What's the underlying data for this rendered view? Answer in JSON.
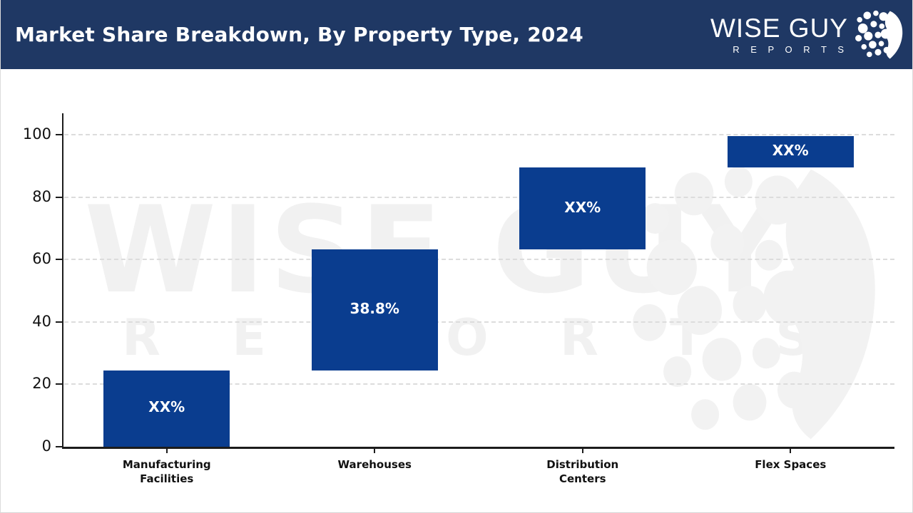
{
  "header": {
    "title": "Market Share Breakdown, By Property Type, 2024",
    "bg_color": "#1f3864",
    "logo": {
      "line1": "WISE GUY",
      "line2": "R E P O R T S"
    }
  },
  "watermark": {
    "line1": "WISE GUY",
    "line2": "R E P O R T S"
  },
  "chart_data": {
    "type": "bar",
    "variant": "waterfall",
    "title": "Market Share Breakdown, By Property Type, 2024",
    "xlabel": "",
    "ylabel": "",
    "categories": [
      {
        "name": "Manufacturing Facilities",
        "display": "Manufacturing\nFacilities"
      },
      {
        "name": "Warehouses",
        "display": "Warehouses"
      },
      {
        "name": "Distribution Centers",
        "display": "Distribution\nCenters"
      },
      {
        "name": "Flex Spaces",
        "display": "Flex Spaces"
      }
    ],
    "segments": [
      {
        "category": "Manufacturing Facilities",
        "start": 0,
        "end": 24.5,
        "label": "XX%"
      },
      {
        "category": "Warehouses",
        "start": 24.5,
        "end": 63.3,
        "label": "38.8%"
      },
      {
        "category": "Distribution Centers",
        "start": 63.3,
        "end": 89.5,
        "label": "XX%"
      },
      {
        "category": "Flex Spaces",
        "start": 89.5,
        "end": 99.7,
        "label": "XX%"
      }
    ],
    "yticks": [
      0,
      20,
      40,
      60,
      80,
      100
    ],
    "ylim": [
      0,
      106
    ],
    "grid": "dashed-horizontal",
    "legend": "none",
    "bar_color": "#0a3d8f",
    "bar_label_color": "#ffffff",
    "axis_color": "#1c1c1c",
    "gridline_color": "#dcdcdc"
  }
}
